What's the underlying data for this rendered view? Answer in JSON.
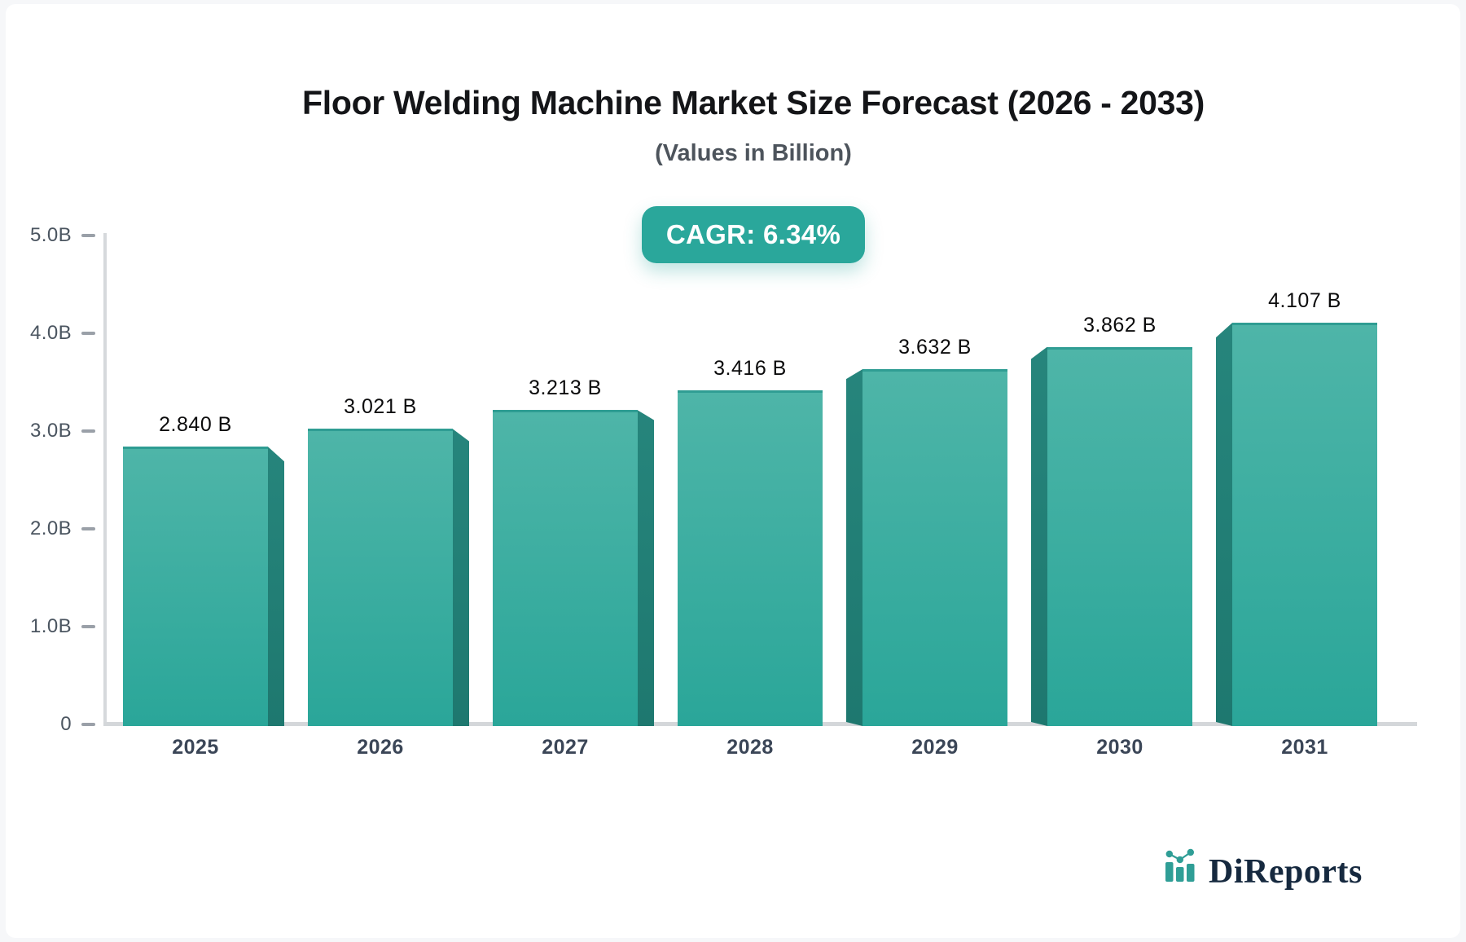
{
  "page": {
    "background": "#f6f7f9",
    "card_background": "#ffffff"
  },
  "header": {
    "title": "Floor Welding Machine Market Size Forecast (2026 - 2033)",
    "subtitle": "(Values in Billion)"
  },
  "badge": {
    "label": "CAGR: 6.34%",
    "background": "#2aa79b",
    "text_color": "#ffffff"
  },
  "chart_data": {
    "type": "bar",
    "title": "Floor Welding Machine Market Size Forecast (2026 - 2033)",
    "subtitle": "(Values in Billion)",
    "unit": "Billion",
    "categories": [
      "2025",
      "2026",
      "2027",
      "2028",
      "2029",
      "2030",
      "2031"
    ],
    "values": [
      2.84,
      3.021,
      3.213,
      3.416,
      3.632,
      3.862,
      4.107
    ],
    "value_labels": [
      "2.840 B",
      "3.021 B",
      "3.213 B",
      "3.416 B",
      "3.632 B",
      "3.862 B",
      "4.107 B"
    ],
    "xlabel": "",
    "ylabel": "",
    "ylim": [
      0,
      5
    ],
    "yticks": [
      {
        "label": "5.0B",
        "value": 5
      },
      {
        "label": "4.0B",
        "value": 4
      },
      {
        "label": "3.0B",
        "value": 3
      },
      {
        "label": "2.0B",
        "value": 2
      },
      {
        "label": "1.0B",
        "value": 1
      },
      {
        "label": "0",
        "value": 0
      }
    ],
    "grid": false,
    "legend": false,
    "colors": {
      "face_top": "#4eb5a8",
      "face_bottom": "#2aa699",
      "side_top": "#26857c",
      "side_bottom": "#1e786f",
      "top_edge": "#2f9d93",
      "axis": "#d6d9dc",
      "tick": "#9aa0a8",
      "tick_label": "#4b5560",
      "x_label": "#3b4657",
      "value_label": "#0b0b0c"
    }
  },
  "logo": {
    "text": "DiReports",
    "icon": "bar-chart-icon",
    "text_color": "#16293f",
    "icon_color": "#2f9e96"
  }
}
